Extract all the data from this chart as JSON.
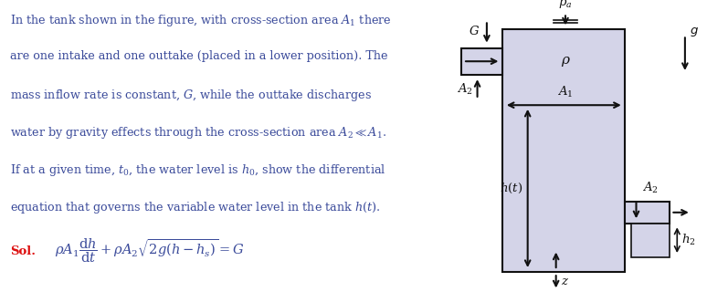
{
  "bg_color": "#ffffff",
  "text_color": "#3a4a9a",
  "sol_color": "#dd1111",
  "diagram_fill": "#d4d4e8",
  "line_color": "#111111",
  "fig_width": 7.74,
  "fig_height": 3.2,
  "body_lines": [
    "In the tank shown in the figure, with cross-section area $A_1$ there",
    "are one intake and one outtake (placed in a lower position). The",
    "mass inflow rate is constant, $G$, while the outtake discharges",
    "water by gravity effects through the cross-section area $A_2 \\ll A_1$.",
    "If at a given time, $t_0$, the water level is $h_0$, show the differential",
    "equation that governs the variable water level in the tank $h(t)$."
  ],
  "sol_label": "Sol.",
  "sol_eq": "$\\rho A_1\\dfrac{\\mathrm{d}h}{\\mathrm{d}t}+\\rho A_2\\sqrt{2g(h-h_s)}=G$",
  "dpi": 100
}
